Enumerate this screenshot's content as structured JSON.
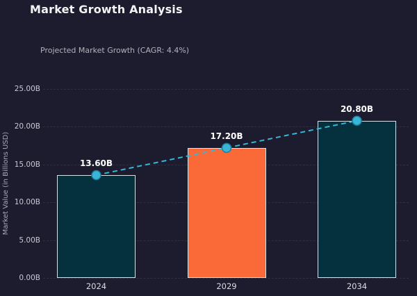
{
  "header": {
    "title": "Market Growth Analysis",
    "subtitle": "Projected Market Growth (CAGR: 4.4%)"
  },
  "chart_data": {
    "type": "bar",
    "title": "Market Growth Analysis",
    "subtitle": "Projected Market Growth (CAGR: 4.4%)",
    "categories": [
      "2024",
      "2029",
      "2034"
    ],
    "series": [
      {
        "name": "Market Value bars",
        "type": "bar",
        "values": [
          13.6,
          17.2,
          20.8
        ],
        "bar_colors": [
          "#05313f",
          "#fa6a38",
          "#05313f"
        ],
        "bar_border_color": "#d6e2e8"
      },
      {
        "name": "Trend line",
        "type": "line",
        "values": [
          13.6,
          17.2,
          20.8
        ],
        "line_style": "dashed",
        "line_color": "#37b6d6",
        "marker": "circle",
        "marker_color": "#37b6d6",
        "marker_edge_color": "#1f7d9b"
      }
    ],
    "point_labels": [
      "13.60B",
      "17.20B",
      "20.80B"
    ],
    "xlabel": "",
    "ylabel": "Market Value (in Billions USD)",
    "ylim": [
      0,
      25
    ],
    "yticks": {
      "values": [
        0,
        5,
        10,
        15,
        20,
        25
      ],
      "labels": [
        "0.00B",
        "5.00B",
        "10.00B",
        "15.00B",
        "20.00B",
        "25.00B"
      ]
    },
    "grid": "horizontal-dashed",
    "legend_position": "none",
    "background_color": "#1c1c2e",
    "title_color": "#f4f4f6",
    "subtitle_color": "#b2b2be",
    "tick_color": "#c9c9d4",
    "data_label_color": "#ffffff"
  }
}
